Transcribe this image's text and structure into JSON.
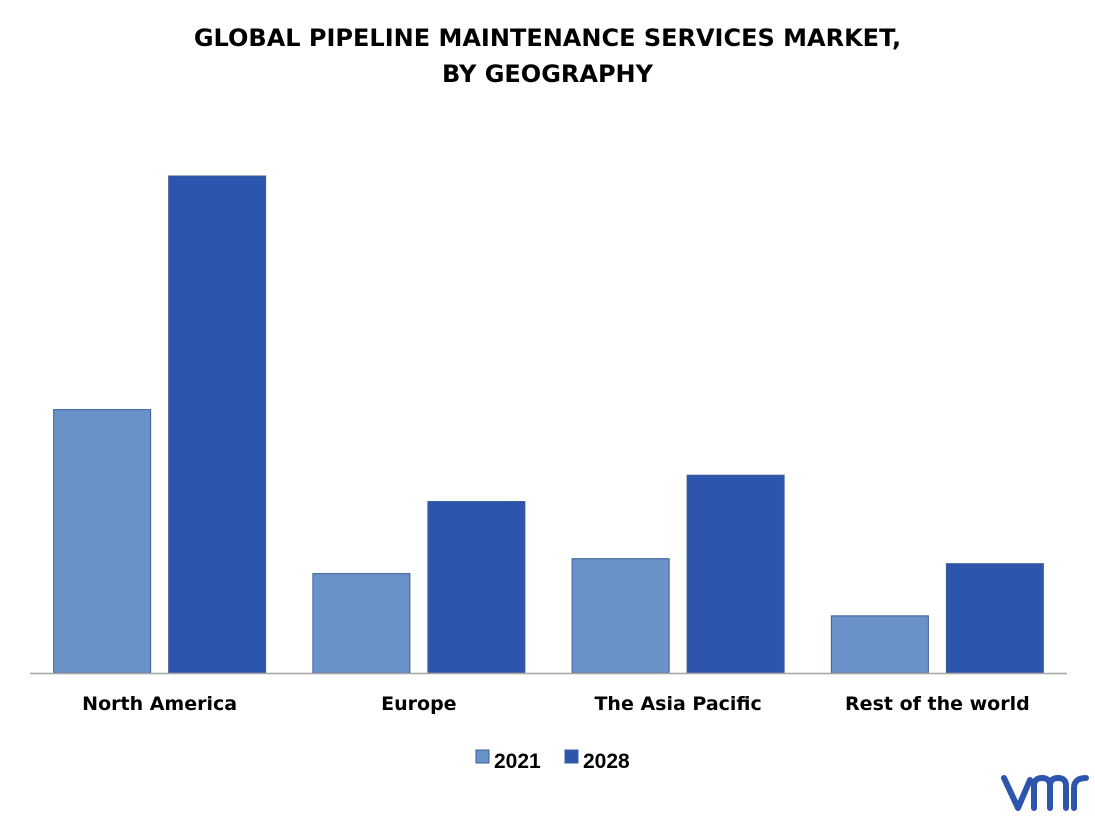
{
  "chart_data": {
    "type": "bar",
    "title_line1": "GLOBAL PIPELINE MAINTENANCE SERVICES MARKET,",
    "title_line2": "BY GEOGRAPHY",
    "categories": [
      "North America",
      "Europe",
      "The Asia Pacific",
      "Rest of the world"
    ],
    "series": [
      {
        "name": "2021",
        "values": [
          53,
          20,
          23,
          11.5
        ],
        "color": "#6892c8"
      },
      {
        "name": "2028",
        "values": [
          100,
          34.5,
          39.8,
          22
        ],
        "color": "#2e55ad"
      }
    ],
    "ylim": [
      0,
      100
    ],
    "grid": false,
    "legend_position": "bottom-center",
    "xlabel": "",
    "ylabel": ""
  },
  "logo": {
    "text": "vmr",
    "color": "#2e55ad"
  }
}
